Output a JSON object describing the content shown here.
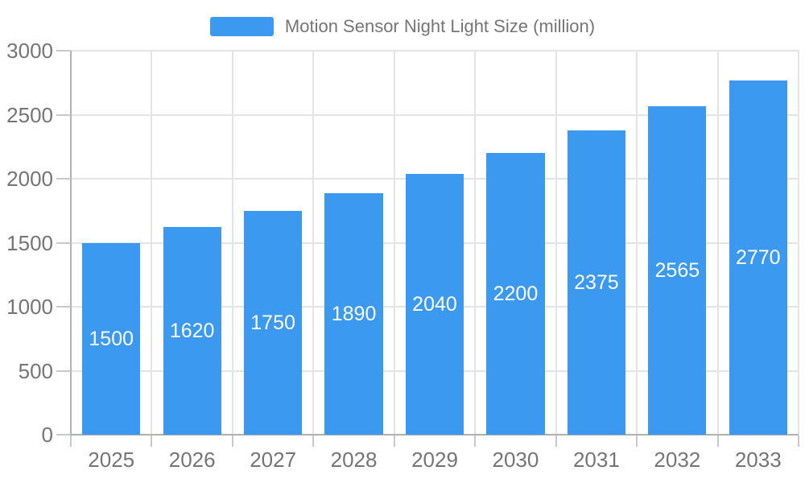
{
  "chart_data": {
    "type": "bar",
    "legend": "Motion Sensor Night Light Size (million)",
    "series_name": "Motion Sensor Night Light Size (million)",
    "categories": [
      "2025",
      "2026",
      "2027",
      "2028",
      "2029",
      "2030",
      "2031",
      "2032",
      "2033"
    ],
    "values": [
      1500,
      1620,
      1750,
      1890,
      2040,
      2200,
      2375,
      2565,
      2770
    ],
    "data_labels": [
      "1500",
      "1620",
      "1750",
      "1890",
      "2040",
      "2200",
      "2375",
      "2565",
      "2770"
    ],
    "xlabel": "",
    "ylabel": "",
    "ylim": [
      0,
      3000
    ],
    "yticks": [
      0,
      500,
      1000,
      1500,
      2000,
      2500,
      3000
    ],
    "ytick_labels": [
      "0",
      "500",
      "1000",
      "1500",
      "2000",
      "2500",
      "3000"
    ],
    "grid": "on",
    "legend_position": "top-center",
    "colors": {
      "bar": "#3B99F0",
      "bar_label_text": "#ffffff",
      "axis_line": "#b0b0b0",
      "tick_mark": "#c9c9c9",
      "gridline": "#e4e4e4",
      "tick_text": "#757575",
      "legend_text": "#757575"
    }
  }
}
